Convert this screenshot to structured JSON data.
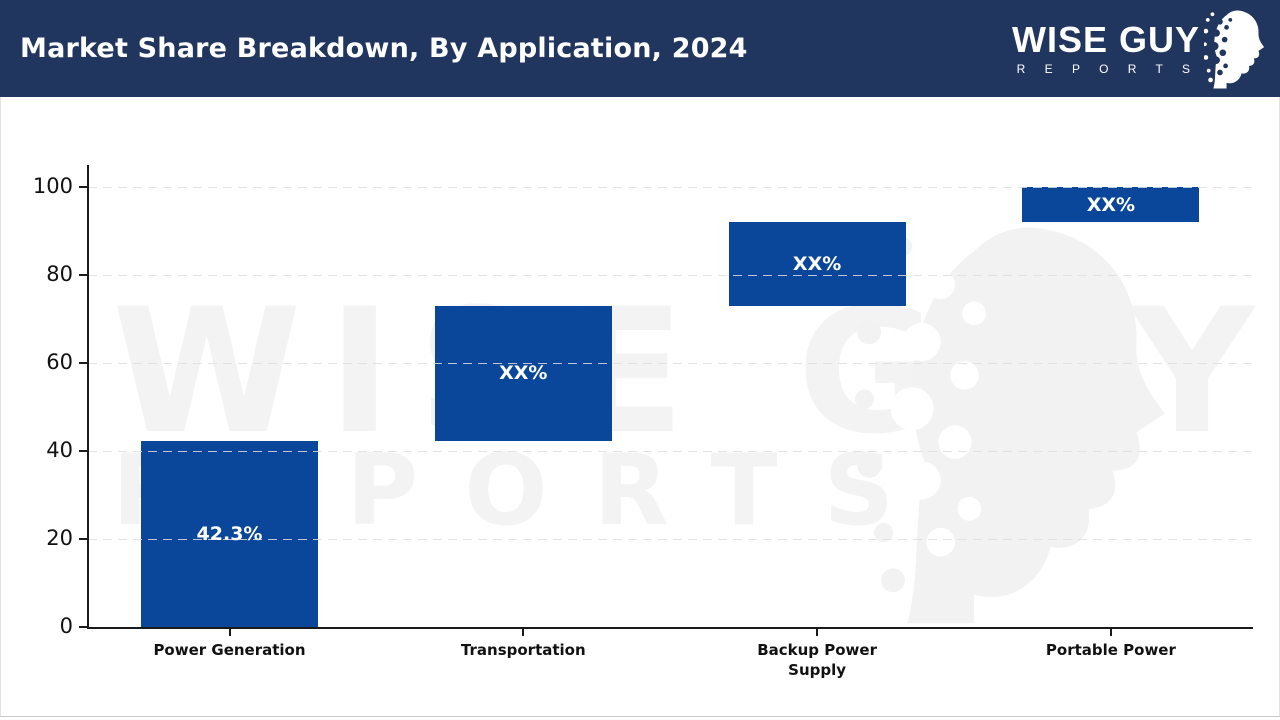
{
  "header": {
    "title": "Market Share Breakdown, By Application, 2024",
    "logo": {
      "name": "WISE GUY",
      "tagline": "R E P O R T S"
    }
  },
  "watermark": {
    "line1": "WISE GUY",
    "line2": "REPORTS"
  },
  "chart_data": {
    "type": "bar",
    "subtype": "floating-waterfall",
    "title": "Market Share Breakdown, By Application, 2024",
    "categories": [
      "Power Generation",
      "Transportation",
      "Backup Power Supply",
      "Portable Power"
    ],
    "segments": [
      {
        "category": "Power Generation",
        "start": 0,
        "end": 42.3,
        "label": "42.3%"
      },
      {
        "category": "Transportation",
        "start": 42.3,
        "end": 73,
        "label": "XX%"
      },
      {
        "category": "Backup Power Supply",
        "start": 73,
        "end": 92,
        "label": "XX%"
      },
      {
        "category": "Portable Power",
        "start": 92,
        "end": 100,
        "label": "XX%"
      }
    ],
    "y_ticks": [
      0,
      20,
      40,
      60,
      80,
      100
    ],
    "ylim": [
      0,
      104
    ],
    "xlabel": "",
    "ylabel": "",
    "grid": "horizontal-dashed",
    "legend": "none",
    "bar_color": "#0A4699",
    "label_color": "#FFFFFF"
  },
  "colors": {
    "header_bg": "#20365F",
    "bar": "#0A4699",
    "grid": "#E3E3E3",
    "axis": "#1A1A1A",
    "watermark": "#F3F3F3"
  }
}
